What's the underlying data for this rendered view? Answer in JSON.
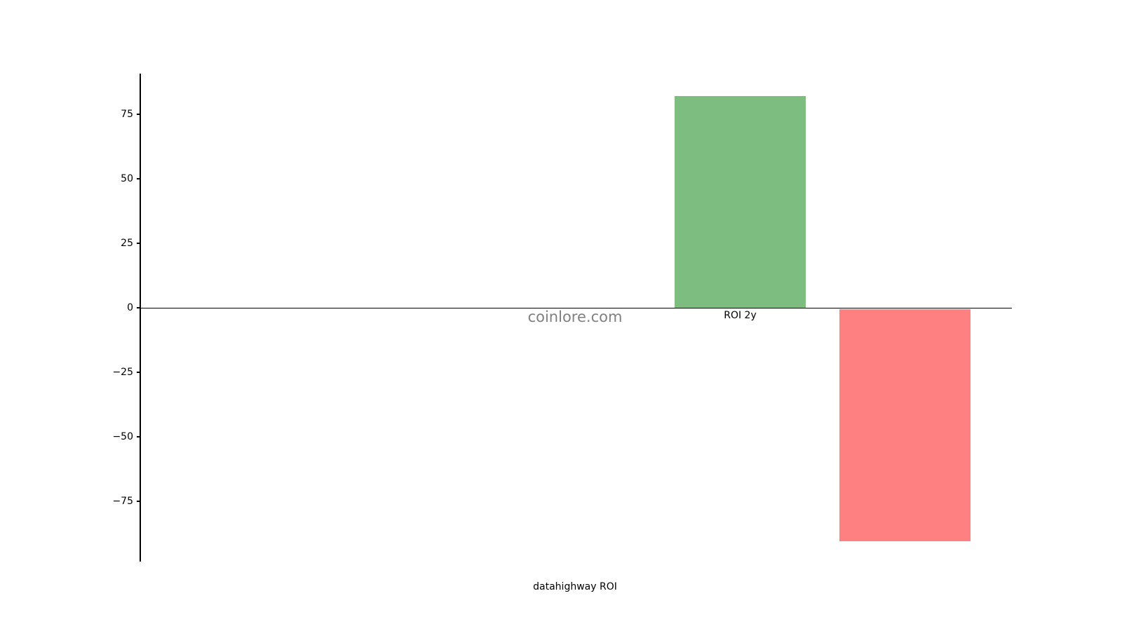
{
  "chart_data": {
    "type": "bar",
    "title": "",
    "xlabel": "datahighway ROI",
    "ylabel": "",
    "categories": [
      "ROI 2y",
      ""
    ],
    "values": [
      82,
      -90
    ],
    "bar_colors": [
      "#7dbe80",
      "#ff8080"
    ],
    "yticks": [
      75,
      50,
      25,
      0,
      -25,
      -50,
      -75
    ],
    "ytick_labels": [
      "75",
      "50",
      "25",
      "0",
      "−25",
      "−50",
      "−75"
    ],
    "ylim": [
      -98.6,
      90.6
    ],
    "grid": false,
    "legend": null,
    "axis_color": "#000000",
    "background_color": "#ffffff"
  },
  "watermark": {
    "text": "coinlore.com",
    "color": "#808080"
  }
}
